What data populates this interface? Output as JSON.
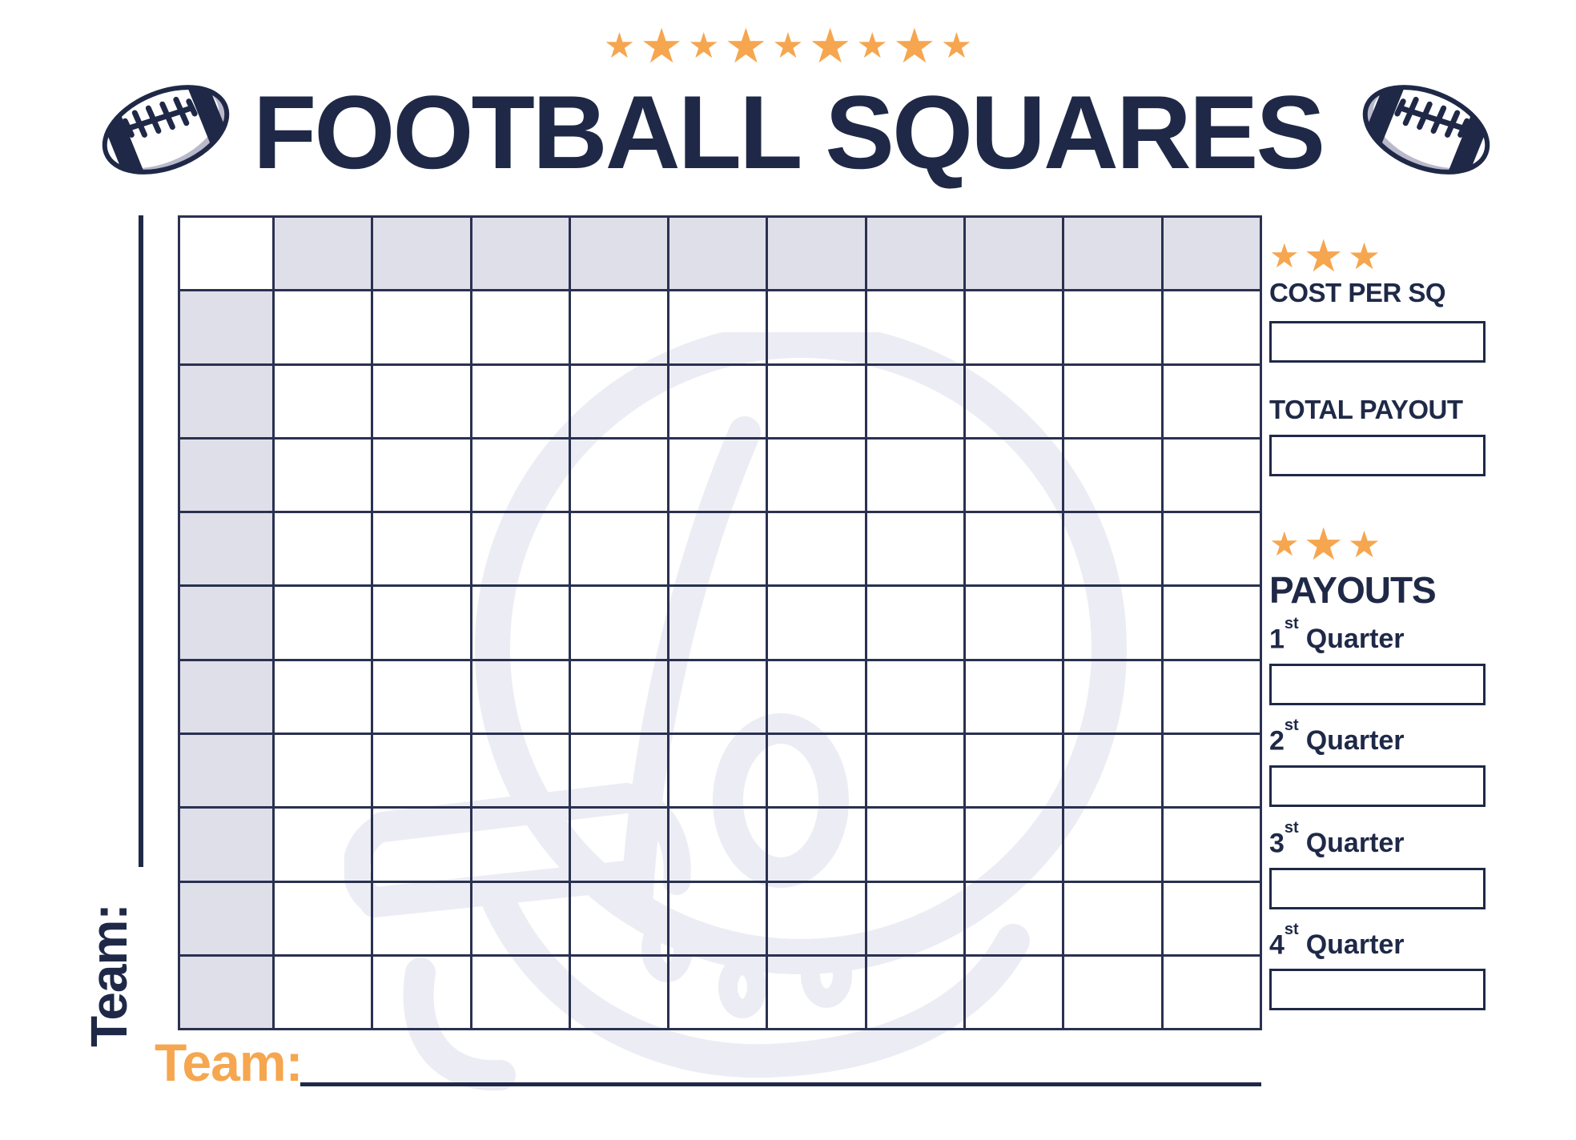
{
  "header": {
    "title": "FOOTBALL SQUARES",
    "stars": [
      "small",
      "large",
      "small",
      "large",
      "small",
      "large",
      "small",
      "large",
      "small"
    ]
  },
  "icons": {
    "star_glyph": "★",
    "football_left": "football-icon",
    "football_right": "football-icon",
    "watermark": "football-helmet-watermark"
  },
  "grid": {
    "rows": 11,
    "cols": 11,
    "description": "10x10 squares grid with blank shaded header row and header column"
  },
  "team_left": {
    "label": "Team:"
  },
  "team_bottom": {
    "label": "Team:"
  },
  "sidebar": {
    "stars": [
      "small",
      "large",
      "mid"
    ],
    "cost_per_sq_label": "COST PER SQ",
    "cost_per_sq_value": "",
    "total_payout_label": "TOTAL PAYOUT",
    "total_payout_value": "",
    "payouts_label": "PAYOUTS",
    "quarters": [
      {
        "num": "1",
        "suffix": "st",
        "word": "Quarter",
        "value": ""
      },
      {
        "num": "2",
        "suffix": "st",
        "word": "Quarter",
        "value": ""
      },
      {
        "num": "3",
        "suffix": "st",
        "word": "Quarter",
        "value": ""
      },
      {
        "num": "4",
        "suffix": "st",
        "word": "Quarter",
        "value": ""
      }
    ]
  },
  "colors": {
    "navy": "#1F2947",
    "grid_line": "#2A3150",
    "shaded": "#DFDFE9",
    "orange": "#F6A64F",
    "watermark": "#ECECF4",
    "ball_gray": "#B9B9CB",
    "paper": "#FFFFFF"
  }
}
